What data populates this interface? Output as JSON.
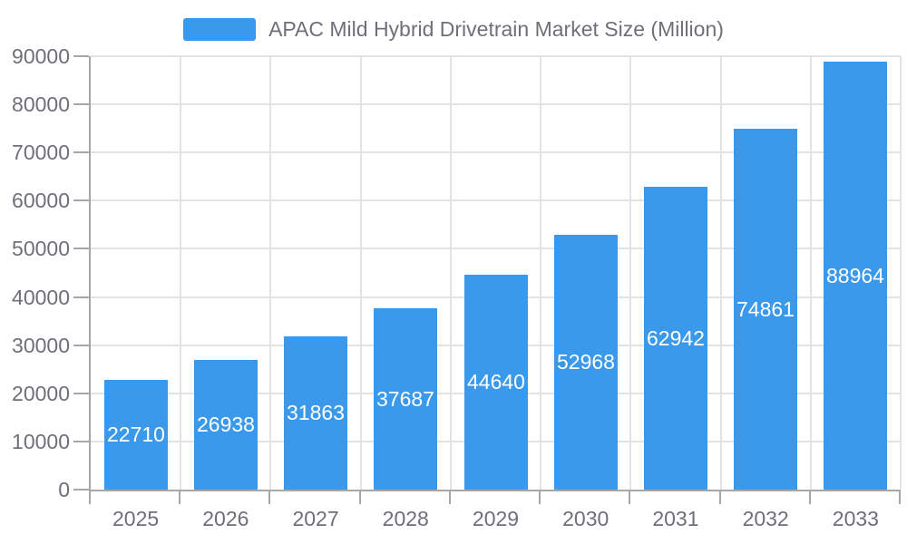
{
  "colors": {
    "background": "#ffffff",
    "bar": "#3B99EC",
    "grid": "#E3E3E3",
    "axis": "#A6A6A6",
    "axis_label": "#6E7079",
    "value_label": "#FFFFFF",
    "legend_text": "#6E7079"
  },
  "legend": {
    "label": "APAC Mild Hybrid Drivetrain Market Size (Million)"
  },
  "chart_data": {
    "type": "bar",
    "title": "APAC Mild Hybrid Drivetrain Market Size (Million)",
    "categories": [
      "2025",
      "2026",
      "2027",
      "2028",
      "2029",
      "2030",
      "2031",
      "2032",
      "2033"
    ],
    "values": [
      22710,
      26938,
      31863,
      37687,
      44640,
      52968,
      62942,
      74861,
      88964
    ],
    "series": [
      {
        "name": "APAC Mild Hybrid Drivetrain Market Size (Million)",
        "values": [
          22710,
          26938,
          31863,
          37687,
          44640,
          52968,
          62942,
          74861,
          88964
        ]
      }
    ],
    "xlabel": "",
    "ylabel": "",
    "ylim": [
      0,
      90000
    ],
    "yticks": [
      0,
      10000,
      20000,
      30000,
      40000,
      50000,
      60000,
      70000,
      80000,
      90000
    ],
    "grid": true,
    "legend_position": "top-center",
    "value_labels": "inside-center"
  }
}
